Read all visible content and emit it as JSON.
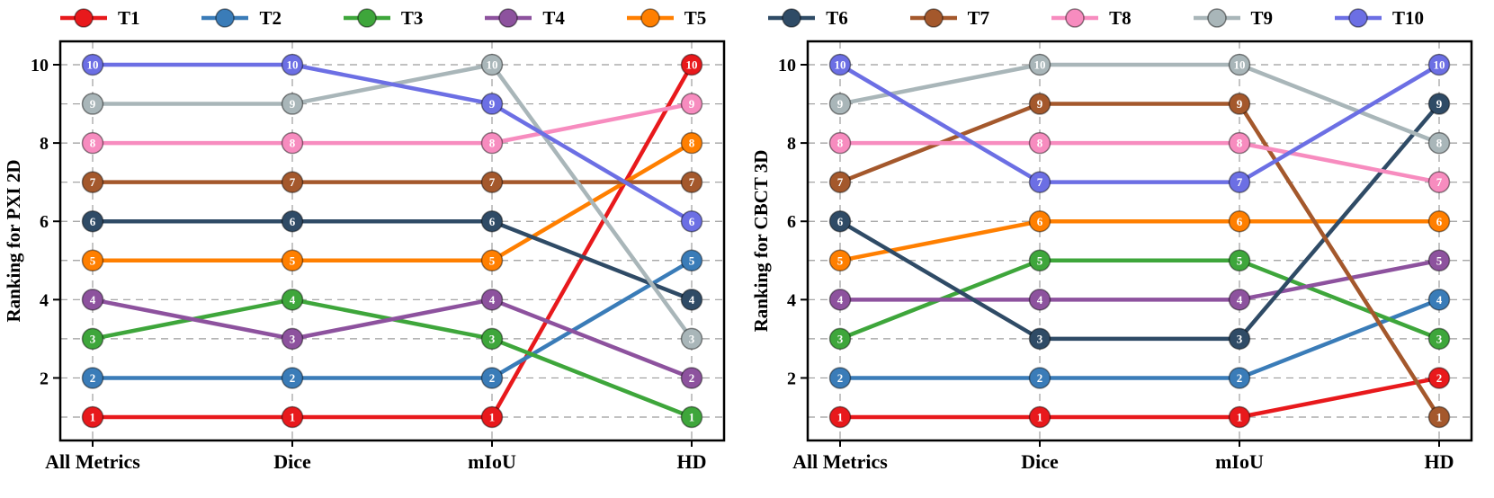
{
  "legend": {
    "items": [
      {
        "label": "T1",
        "color": "#E8191C"
      },
      {
        "label": "T2",
        "color": "#3A7CB8"
      },
      {
        "label": "T3",
        "color": "#3EA63B"
      },
      {
        "label": "T4",
        "color": "#8D529E"
      },
      {
        "label": "T5",
        "color": "#FF7F00"
      },
      {
        "label": "T6",
        "color": "#2F4B66"
      },
      {
        "label": "T7",
        "color": "#A4582C"
      },
      {
        "label": "T8",
        "color": "#F78CBF"
      },
      {
        "label": "T9",
        "color": "#A9B6B9"
      },
      {
        "label": "T10",
        "color": "#6C6FE4"
      }
    ]
  },
  "chart_data": [
    {
      "type": "line",
      "title": "",
      "xlabel": "",
      "ylabel": "Ranking for PXI 2D",
      "categories": [
        "All Metrics",
        "Dice",
        "mIoU",
        "HD"
      ],
      "ylim": [
        1,
        10
      ],
      "yticks": [
        2,
        4,
        6,
        8,
        10
      ],
      "grid": "dashed horizontal and vertical",
      "legend_position": "top",
      "series": [
        {
          "name": "T1",
          "color": "#E8191C",
          "values": [
            1,
            1,
            1,
            10
          ]
        },
        {
          "name": "T2",
          "color": "#3A7CB8",
          "values": [
            2,
            2,
            2,
            5
          ]
        },
        {
          "name": "T3",
          "color": "#3EA63B",
          "values": [
            3,
            4,
            3,
            1
          ]
        },
        {
          "name": "T4",
          "color": "#8D529E",
          "values": [
            4,
            3,
            4,
            2
          ]
        },
        {
          "name": "T5",
          "color": "#FF7F00",
          "values": [
            5,
            5,
            5,
            8
          ]
        },
        {
          "name": "T6",
          "color": "#2F4B66",
          "values": [
            6,
            6,
            6,
            4
          ]
        },
        {
          "name": "T7",
          "color": "#A4582C",
          "values": [
            7,
            7,
            7,
            7
          ]
        },
        {
          "name": "T8",
          "color": "#F78CBF",
          "values": [
            8,
            8,
            8,
            9
          ]
        },
        {
          "name": "T9",
          "color": "#A9B6B9",
          "values": [
            9,
            9,
            10,
            3
          ]
        },
        {
          "name": "T10",
          "color": "#6C6FE4",
          "values": [
            10,
            10,
            9,
            6
          ]
        }
      ]
    },
    {
      "type": "line",
      "title": "",
      "xlabel": "",
      "ylabel": "Ranking for CBCT 3D",
      "categories": [
        "All Metrics",
        "Dice",
        "mIoU",
        "HD"
      ],
      "ylim": [
        1,
        10
      ],
      "yticks": [
        2,
        4,
        6,
        8,
        10
      ],
      "grid": "dashed horizontal and vertical",
      "legend_position": "top",
      "series": [
        {
          "name": "T1",
          "color": "#E8191C",
          "values": [
            1,
            1,
            1,
            2
          ]
        },
        {
          "name": "T2",
          "color": "#3A7CB8",
          "values": [
            2,
            2,
            2,
            4
          ]
        },
        {
          "name": "T3",
          "color": "#3EA63B",
          "values": [
            3,
            5,
            5,
            3
          ]
        },
        {
          "name": "T4",
          "color": "#8D529E",
          "values": [
            4,
            4,
            4,
            5
          ]
        },
        {
          "name": "T5",
          "color": "#FF7F00",
          "values": [
            5,
            6,
            6,
            6
          ]
        },
        {
          "name": "T6",
          "color": "#2F4B66",
          "values": [
            6,
            3,
            3,
            9
          ]
        },
        {
          "name": "T7",
          "color": "#A4582C",
          "values": [
            7,
            9,
            9,
            1
          ]
        },
        {
          "name": "T8",
          "color": "#F78CBF",
          "values": [
            8,
            8,
            8,
            7
          ]
        },
        {
          "name": "T9",
          "color": "#A9B6B9",
          "values": [
            9,
            10,
            10,
            8
          ]
        },
        {
          "name": "T10",
          "color": "#6C6FE4",
          "values": [
            10,
            7,
            7,
            10
          ]
        }
      ]
    }
  ]
}
